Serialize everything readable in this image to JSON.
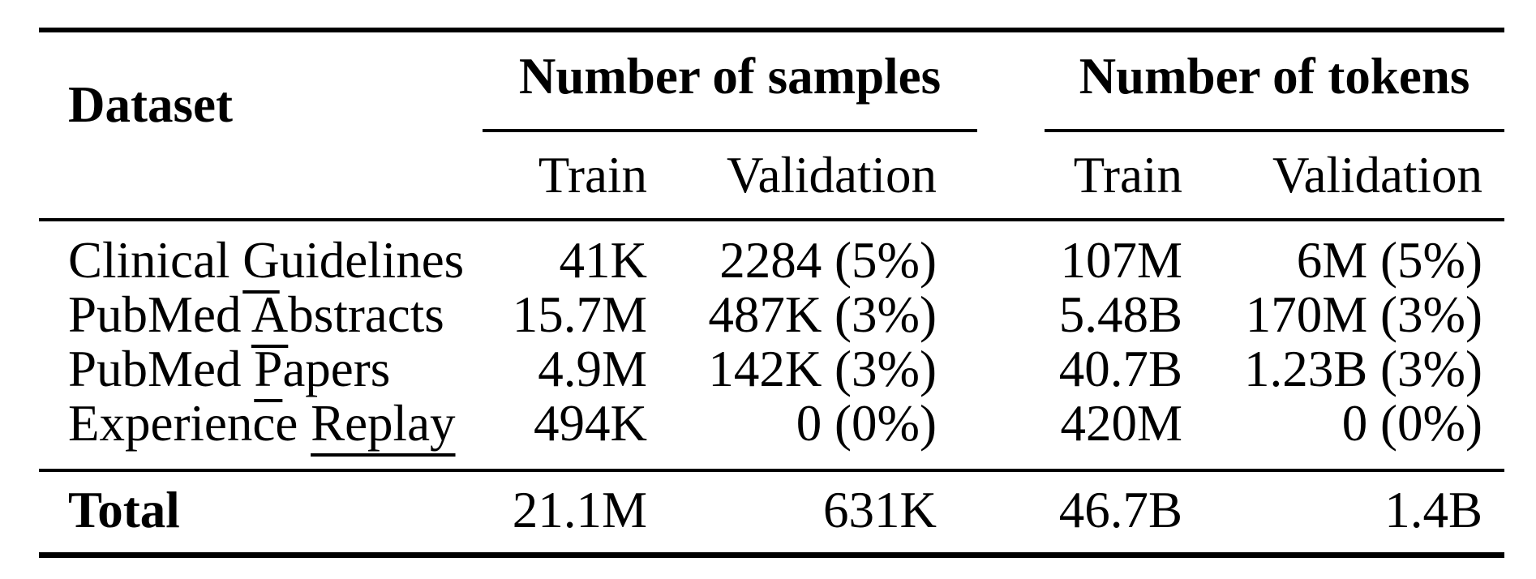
{
  "table": {
    "colors": {
      "ink": "#000000",
      "background": "#ffffff"
    },
    "header": {
      "dataset_col": "Dataset",
      "groups": {
        "samples": "Number of samples",
        "tokens": "Number of tokens"
      },
      "subheaders": {
        "train": "Train",
        "validation": "Validation"
      }
    },
    "rows": [
      {
        "name": {
          "pre": "Clinical ",
          "u": "G",
          "post": "uidelines"
        },
        "samples_train": "41K",
        "samples_validation": "2284 (5%)",
        "tokens_train": "107M",
        "tokens_validation": "6M (5%)"
      },
      {
        "name": {
          "pre": "PubMed ",
          "u": "A",
          "post": "bstracts"
        },
        "samples_train": "15.7M",
        "samples_validation": "487K (3%)",
        "tokens_train": "5.48B",
        "tokens_validation": "170M (3%)"
      },
      {
        "name": {
          "pre": "PubMed ",
          "u": "P",
          "post": "apers"
        },
        "samples_train": "4.9M",
        "samples_validation": "142K (3%)",
        "tokens_train": "40.7B",
        "tokens_validation": "1.23B (3%)"
      },
      {
        "name": {
          "pre": "Experience ",
          "u": "Replay",
          "post": ""
        },
        "samples_train": "494K",
        "samples_validation": "0 (0%)",
        "tokens_train": "420M",
        "tokens_validation": "0 (0%)"
      }
    ],
    "total": {
      "label": "Total",
      "samples_train": "21.1M",
      "samples_validation": "631K",
      "tokens_train": "46.7B",
      "tokens_validation": "1.4B"
    }
  }
}
